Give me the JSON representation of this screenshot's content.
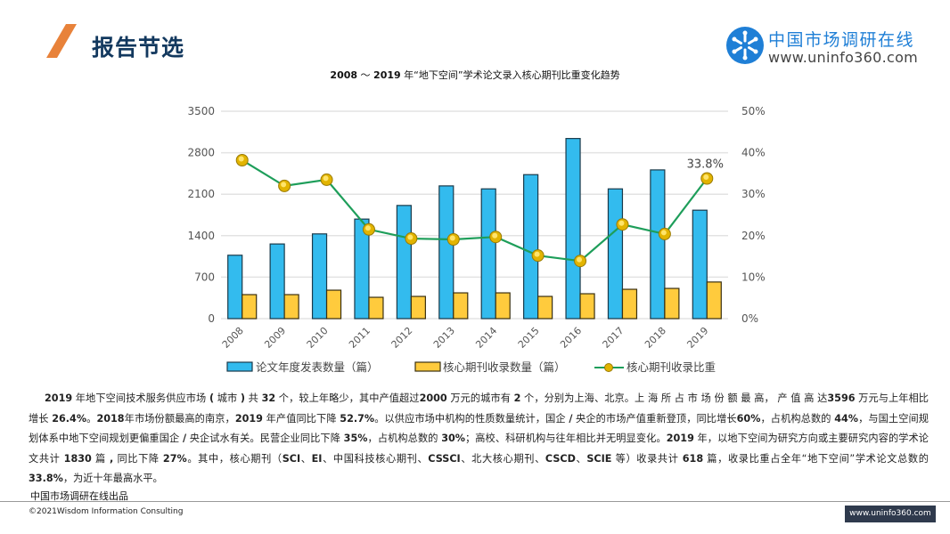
{
  "header": {
    "title": "报告节选",
    "accent_color": "#e8823a",
    "title_color": "#12385e",
    "logo": {
      "icon": "snowflake-logo-icon",
      "name_cn": "中国市场调研在线",
      "url": "www.uninfo360.com",
      "brand_color": "#1f7fd6"
    }
  },
  "chart_data": {
    "type": "bar",
    "title": "2008 ～ 2019 年“地下空间”学术论文录入核心期刊比重变化趋势",
    "title_parts": [
      "2008",
      " ～ ",
      "2019",
      " 年“地下空间”学术论文录入核心期刊比重变化趋势"
    ],
    "categories": [
      "2008",
      "2009",
      "2010",
      "2011",
      "2012",
      "2013",
      "2014",
      "2015",
      "2016",
      "2017",
      "2018",
      "2019"
    ],
    "series": [
      {
        "name": "论文年度发表数量（篇）",
        "type": "bar",
        "axis": "left",
        "color": "#33bbee",
        "values": [
          1070,
          1260,
          1430,
          1680,
          1910,
          2240,
          2190,
          2430,
          3040,
          2190,
          2510,
          1830
        ]
      },
      {
        "name": "核心期刊收录数量（篇）",
        "type": "bar",
        "axis": "left",
        "color": "#ffcb3d",
        "values": [
          405,
          405,
          480,
          360,
          375,
          435,
          435,
          375,
          420,
          495,
          510,
          618
        ]
      },
      {
        "name": "核心期刊收录比重",
        "type": "line",
        "axis": "right",
        "color": "#1e9e5a",
        "values": [
          38.2,
          32.0,
          33.5,
          21.5,
          19.3,
          19.1,
          19.7,
          15.2,
          13.9,
          22.7,
          20.4,
          33.8
        ]
      }
    ],
    "y_left": {
      "range": [
        0,
        3500
      ],
      "ticks": [
        "0",
        "700",
        "1400",
        "2100",
        "2800",
        "3500"
      ],
      "tick_values": [
        0,
        700,
        1400,
        2100,
        2800,
        3500
      ]
    },
    "y_right": {
      "range": [
        0,
        50
      ],
      "ticks": [
        "0%",
        "10%",
        "20%",
        "30%",
        "40%",
        "50%"
      ],
      "tick_values": [
        0,
        10,
        20,
        30,
        40,
        50
      ]
    },
    "annotations": [
      {
        "category": "2019",
        "series": "核心期刊收录比重",
        "text": "33.8%"
      }
    ],
    "grid": true,
    "legend": "bottom",
    "xlabel": "",
    "ylabel": ""
  },
  "body": {
    "paragraph": [
      {
        "b": false,
        "t": ""
      },
      {
        "b": true,
        "t": "2019"
      },
      {
        "b": false,
        "t": " 年地下空间技术服务供应市场 "
      },
      {
        "b": true,
        "t": "("
      },
      {
        "b": false,
        "t": " 城市 "
      },
      {
        "b": true,
        "t": ")"
      },
      {
        "b": false,
        "t": " 共 "
      },
      {
        "b": true,
        "t": "32"
      },
      {
        "b": false,
        "t": " 个，较上年略少，其中产值超过"
      },
      {
        "b": true,
        "t": "2000"
      },
      {
        "b": false,
        "t": " 万元的城市有 "
      },
      {
        "b": true,
        "t": "2"
      },
      {
        "b": false,
        "t": " 个，分别为上海、北京。上 海 所 占 市 场 份 额 最 高， 产 值 高 达"
      },
      {
        "b": true,
        "t": "3596"
      },
      {
        "b": false,
        "t": " 万元与上年相比增长 "
      },
      {
        "b": true,
        "t": "26.4%"
      },
      {
        "b": false,
        "t": "。"
      },
      {
        "b": true,
        "t": "2018"
      },
      {
        "b": false,
        "t": "年市场份额最高的南京，"
      },
      {
        "b": true,
        "t": "2019"
      },
      {
        "b": false,
        "t": " 年产值同比下降 "
      },
      {
        "b": true,
        "t": "52.7%"
      },
      {
        "b": false,
        "t": "。以供应市场中机构的性质数量统计，国企 "
      },
      {
        "b": true,
        "t": "/"
      },
      {
        "b": false,
        "t": " 央企的市场产值重新登顶，同比增长"
      },
      {
        "b": true,
        "t": "60%"
      },
      {
        "b": false,
        "t": "，占机构总数的 "
      },
      {
        "b": true,
        "t": "44%"
      },
      {
        "b": false,
        "t": "，与国土空间规划体系中地下空间规划更偏重国企 "
      },
      {
        "b": true,
        "t": "/"
      },
      {
        "b": false,
        "t": " 央企试水有关。民营企业同比下降 "
      },
      {
        "b": true,
        "t": "35%"
      },
      {
        "b": false,
        "t": "，占机构总数的 "
      },
      {
        "b": true,
        "t": "30%"
      },
      {
        "b": false,
        "t": "；高校、科研机构与往年相比并无明显变化。"
      },
      {
        "b": true,
        "t": "2019"
      },
      {
        "b": false,
        "t": " 年，以地下空间为研究方向或主要研究内容的学术论文共计 "
      },
      {
        "b": true,
        "t": "1830"
      },
      {
        "b": false,
        "t": " 篇 "
      },
      {
        "b": true,
        "t": ","
      },
      {
        "b": false,
        "t": " 同比下降 "
      },
      {
        "b": true,
        "t": "27%"
      },
      {
        "b": false,
        "t": "。其中，核心期刊（"
      },
      {
        "b": true,
        "t": "SCI"
      },
      {
        "b": false,
        "t": "、"
      },
      {
        "b": true,
        "t": "EI"
      },
      {
        "b": false,
        "t": "、中国科技核心期刊、"
      },
      {
        "b": true,
        "t": "CSSCI"
      },
      {
        "b": false,
        "t": "、北大核心期刊、"
      },
      {
        "b": true,
        "t": "CSCD"
      },
      {
        "b": false,
        "t": "、"
      },
      {
        "b": true,
        "t": "SCIE"
      },
      {
        "b": false,
        "t": " 等）收录共计 "
      },
      {
        "b": true,
        "t": "618"
      },
      {
        "b": false,
        "t": " 篇，收录比重占全年“地下空间”学术论文总数的 "
      },
      {
        "b": true,
        "t": "33.8%"
      },
      {
        "b": false,
        "t": "，为近十年最高水平。"
      }
    ]
  },
  "footer": {
    "publisher": "中国市场调研在线出品",
    "copyright": "©2021Wisdom Information Consulting",
    "url_badge": "www.uninfo360.com"
  }
}
